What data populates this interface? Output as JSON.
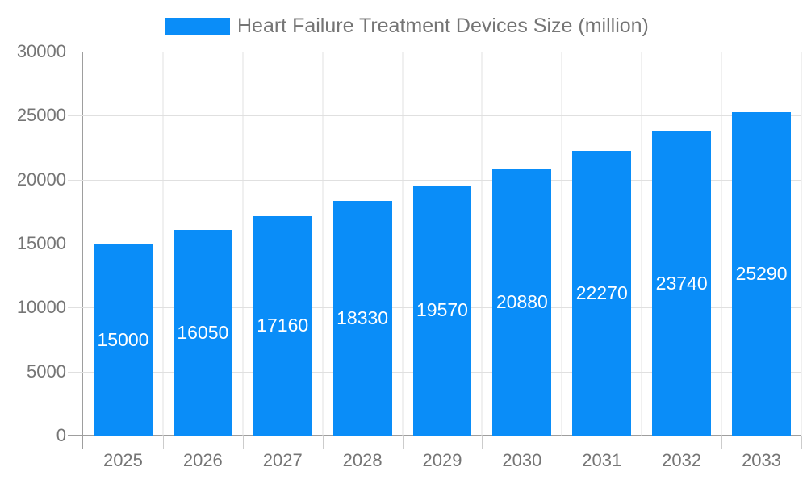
{
  "legend": {
    "label": "Heart Failure Treatment Devices Size (million)"
  },
  "colors": {
    "bar": "#0a8df8",
    "bar_label": "#ffffff",
    "axis_label": "#757575",
    "gridline": "#e0e0e0",
    "axis_line": "#9e9e9e",
    "tick": "#cccccc"
  },
  "chart_data": {
    "type": "bar",
    "title": "Heart Failure Treatment Devices Size (million)",
    "categories": [
      "2025",
      "2026",
      "2027",
      "2028",
      "2029",
      "2030",
      "2031",
      "2032",
      "2033"
    ],
    "values": [
      15000,
      16050,
      17160,
      18330,
      19570,
      20880,
      22270,
      23740,
      25290
    ],
    "xlabel": "",
    "ylabel": "",
    "ylim": [
      0,
      30000
    ],
    "yticks": [
      0,
      5000,
      10000,
      15000,
      20000,
      25000,
      30000
    ],
    "grid": "horizontal and vertical, light gray",
    "legend_position": "top",
    "value_labels": "white, centered inside bars"
  }
}
